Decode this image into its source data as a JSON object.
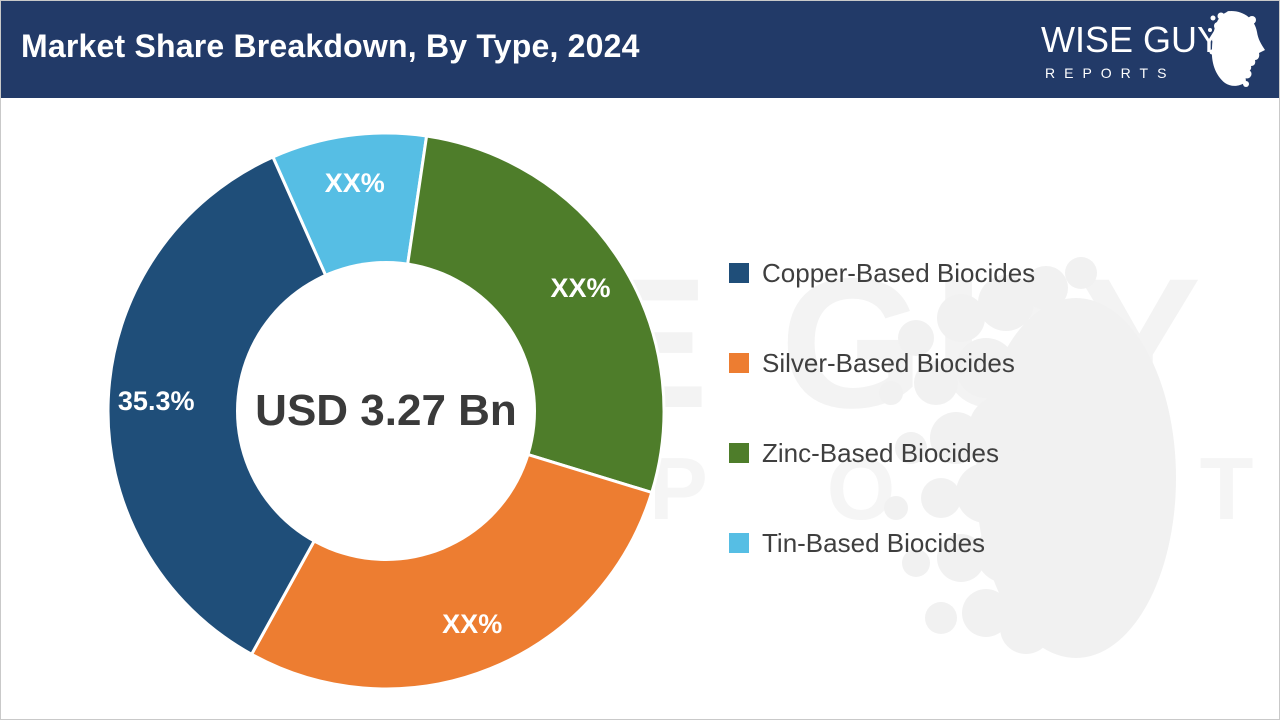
{
  "header": {
    "title": "Market Share Breakdown, By Type, 2024",
    "logo": {
      "line1": "WISE GUY",
      "line2": "R E P O R T S"
    }
  },
  "watermark": {
    "line1": "WISE GUY",
    "line2": "REPORTS"
  },
  "chart_data": {
    "type": "donut",
    "title": "Market Share Breakdown, By Type, 2024",
    "center_label": "USD 3.27 Bn",
    "start_angle_deg": -24,
    "slices_clockwise": [
      {
        "name": "Tin-Based Biocides",
        "value_pct": 9.0,
        "display_label": "XX%",
        "color": "#56BEE4"
      },
      {
        "name": "Zinc-Based Biocides",
        "value_pct": 27.4,
        "display_label": "XX%",
        "color": "#4E7D2A"
      },
      {
        "name": "Silver-Based Biocides",
        "value_pct": 28.3,
        "display_label": "XX%",
        "color": "#ED7D31"
      },
      {
        "name": "Copper-Based Biocides",
        "value_pct": 35.3,
        "display_label": "35.3%",
        "color": "#1F4E79"
      }
    ],
    "legend": [
      {
        "label": "Copper-Based Biocides",
        "color": "#1F4E79"
      },
      {
        "label": "Silver-Based Biocides",
        "color": "#ED7D31"
      },
      {
        "label": "Zinc-Based Biocides",
        "color": "#4E7D2A"
      },
      {
        "label": "Tin-Based Biocides",
        "color": "#56BEE4"
      }
    ],
    "legend_position": "right",
    "colors": {
      "header_bg": "#223A68",
      "center_text": "#3A3A3A",
      "slice_label_text": "#FFFFFF",
      "legend_text": "#3F3F3F",
      "watermark": "#F3F3F3"
    }
  }
}
